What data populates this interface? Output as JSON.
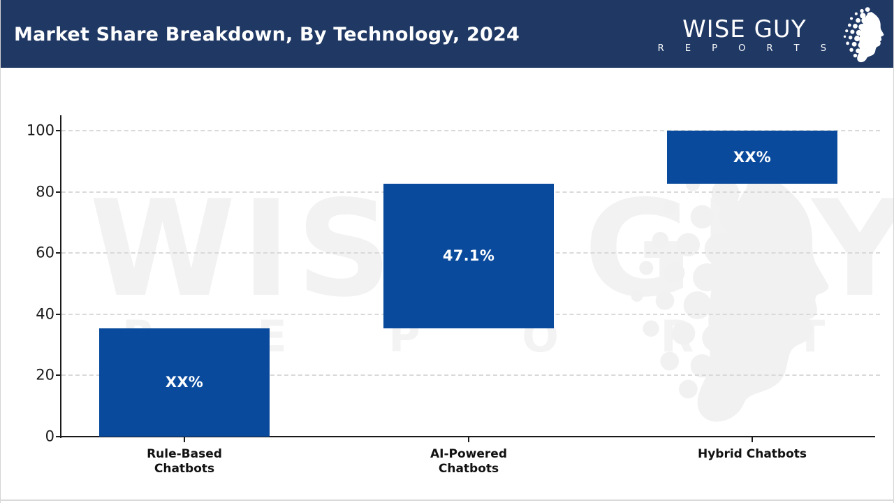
{
  "header": {
    "title": "Market Share Breakdown, By Technology, 2024",
    "logo": {
      "line1": "WISE GUY",
      "line2": "R E P O R T S"
    }
  },
  "watermark": {
    "line1": "WISE GUY",
    "line2": "R E P O R T S"
  },
  "colors": {
    "header_bg": "#1f3864",
    "bar": "#0a4a9c",
    "gridline": "#d9d9d9",
    "axis": "#1a1a1a",
    "title_text": "#ffffff",
    "value_label_text": "#ffffff",
    "watermark": "#f2f2f2"
  },
  "chart_data": {
    "type": "bar",
    "subtype": "floating stacked percentage bars (waterfall style)",
    "title": "Market Share Breakdown, By Technology, 2024",
    "categories": [
      "Rule-Based\nChatbots",
      "AI-Powered\nChatbots",
      "Hybrid Chatbots"
    ],
    "bars": [
      {
        "category": "Rule-Based Chatbots",
        "start": 0,
        "end": 35.5,
        "label": "XX%"
      },
      {
        "category": "AI-Powered Chatbots",
        "start": 35.5,
        "end": 82.6,
        "label": "47.1%"
      },
      {
        "category": "Hybrid Chatbots",
        "start": 82.6,
        "end": 100,
        "label": "XX%"
      }
    ],
    "xlabel": "",
    "ylabel": "",
    "ylim": [
      0,
      100
    ],
    "yticks": [
      0,
      20,
      40,
      60,
      80,
      100
    ],
    "grid": "horizontal dashed",
    "legend": "none",
    "bar_color": "#0a4a9c",
    "value_label_color": "#ffffff"
  }
}
